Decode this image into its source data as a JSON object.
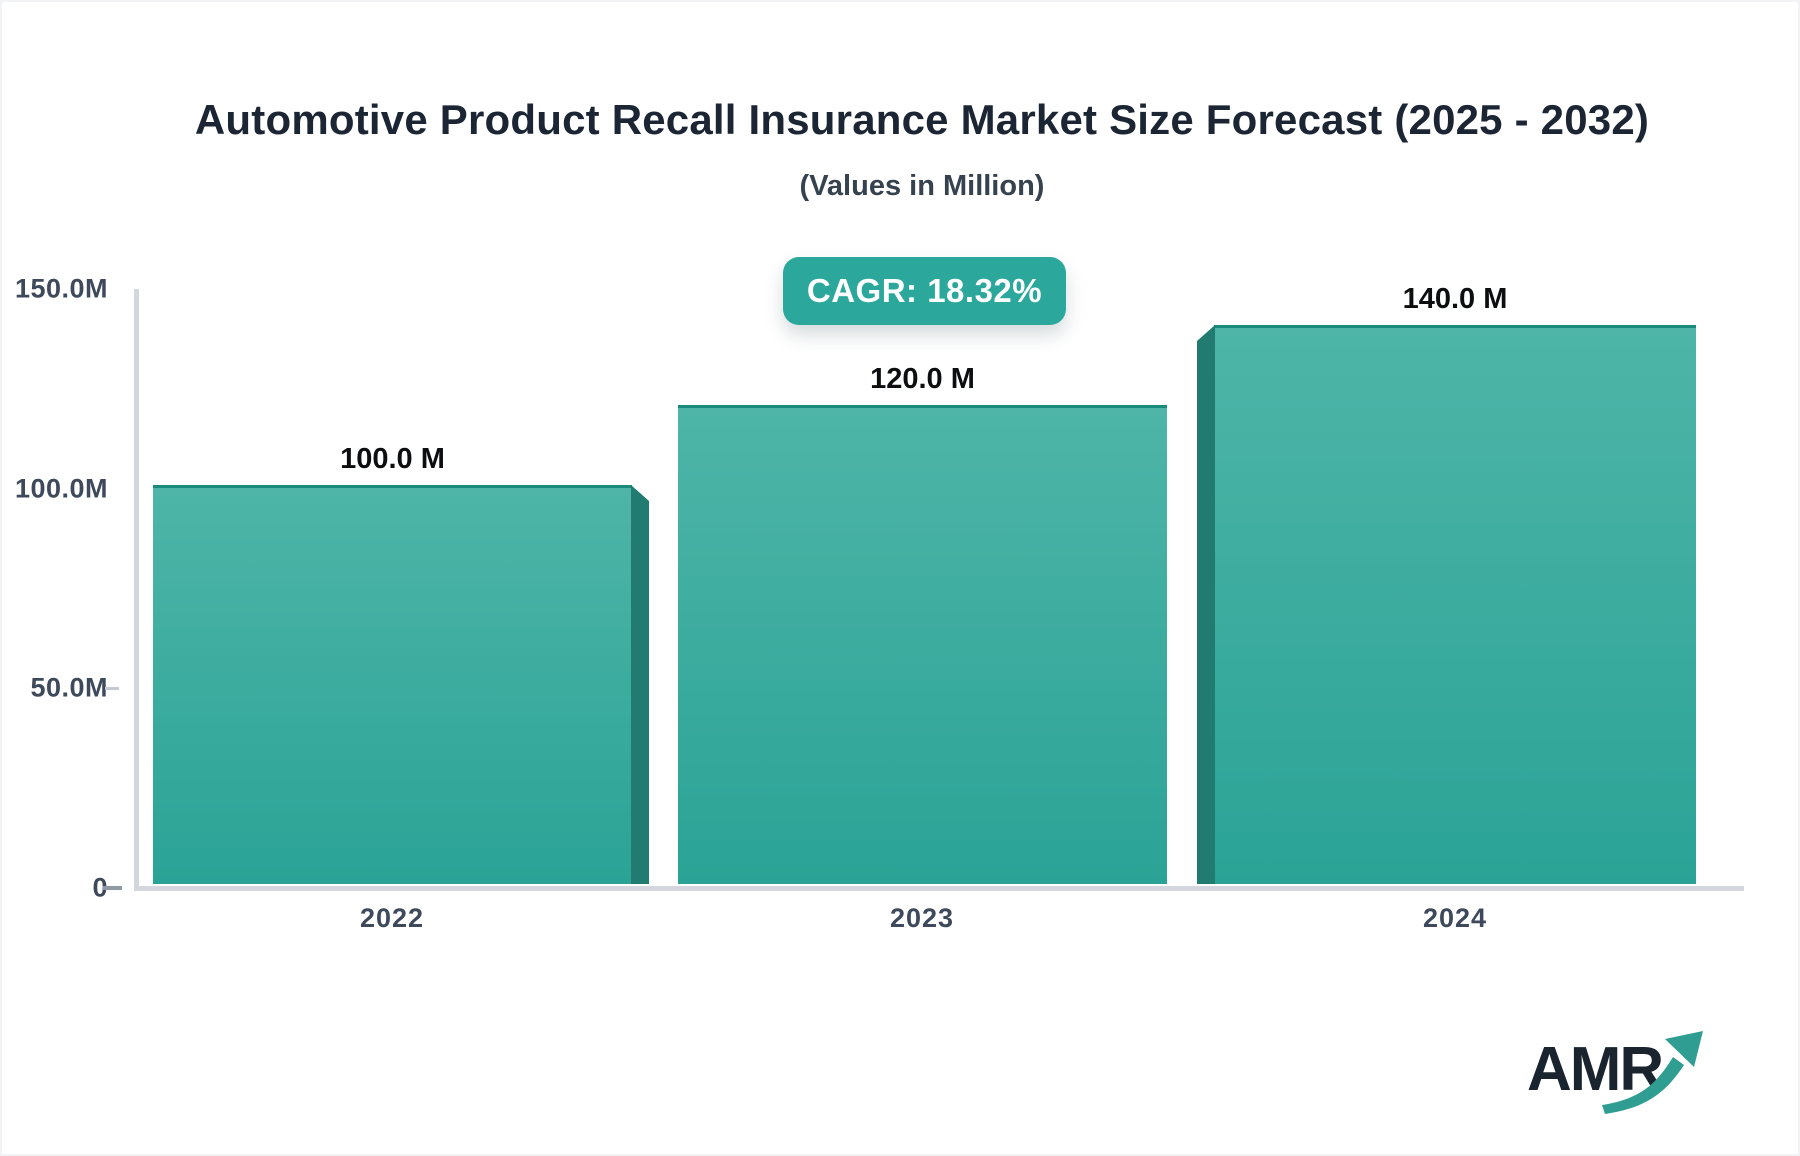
{
  "chart_data": {
    "type": "bar",
    "title": "Automotive Product Recall Insurance Market Size Forecast (2025 - 2032)",
    "subtitle": "(Values in Million)",
    "categories": [
      "2022",
      "2023",
      "2024"
    ],
    "values": [
      100.0,
      120.0,
      140.0
    ],
    "value_labels": [
      "100.0 M",
      "120.0 M",
      "140.0 M"
    ],
    "cagr_annotation": "CAGR: 18.32%",
    "ylim": [
      0,
      150
    ],
    "y_tick_labels": [
      "150.0M",
      "100.0M",
      "50.0M",
      "0"
    ],
    "grid": false,
    "legend": false
  },
  "colors": {
    "bar_top": "#4eb5a8",
    "bar_bottom": "#2aa396",
    "bar_edge": "#1a8a7d",
    "bar_side": "#227b70",
    "badge_bg": "#2ba89b",
    "axis": "#d3d7dd",
    "axis_text": "#3e4a5b",
    "title_text": "#1b2533",
    "subtitle_text": "#37424f",
    "logo_text": "#1a242e",
    "logo_arrow": "#2f9d92"
  },
  "logo": {
    "text": "AMR"
  }
}
